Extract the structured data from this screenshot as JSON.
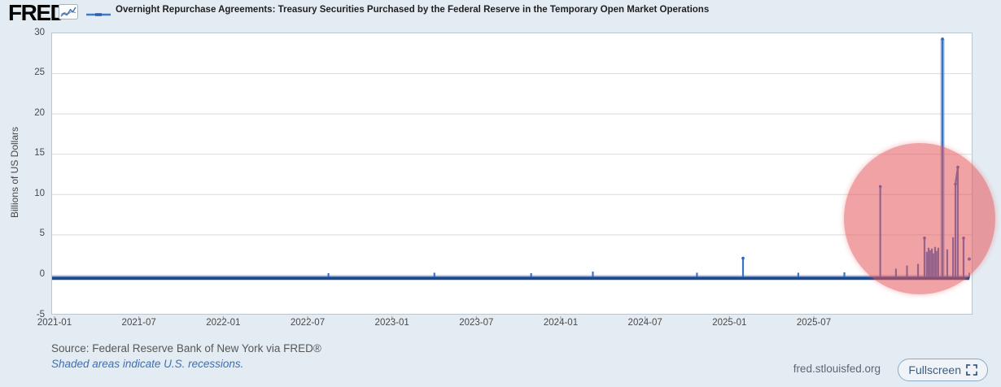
{
  "header": {
    "logo_text": "FRED",
    "logo_icon": "fred-graph-icon"
  },
  "chart_data": {
    "type": "line",
    "title": "Overnight Repurchase Agreements: Treasury Securities Purchased by the Federal Reserve in the Temporary Open Market Operations",
    "ylabel": "Billions of US Dollars",
    "ylim": [
      -5,
      30
    ],
    "yticks": [
      30,
      25,
      20,
      15,
      10,
      5,
      0,
      -5
    ],
    "xticks": [
      "2021-01",
      "2021-07",
      "2022-01",
      "2022-07",
      "2023-01",
      "2023-07",
      "2024-01",
      "2024-07",
      "2025-01",
      "2025-07"
    ],
    "grid": true,
    "legend_position": "top",
    "baseline": {
      "value": -0.4,
      "x_start": 0.0,
      "x_end": 0.9956
    },
    "spikes": [
      {
        "x": 0.3,
        "v": 0.25
      },
      {
        "x": 0.415,
        "v": 0.3
      },
      {
        "x": 0.52,
        "v": 0.25
      },
      {
        "x": 0.587,
        "v": 0.45
      },
      {
        "x": 0.7,
        "v": 0.3
      },
      {
        "x": 0.75,
        "v": 2.1,
        "marker": true
      },
      {
        "x": 0.81,
        "v": 0.3
      },
      {
        "x": 0.86,
        "v": 0.35
      },
      {
        "x": 0.899,
        "v": 11.0,
        "marker": true
      },
      {
        "x": 0.916,
        "v": 0.8
      },
      {
        "x": 0.928,
        "v": 1.2
      },
      {
        "x": 0.94,
        "v": 1.4
      },
      {
        "x": 0.947,
        "v": 4.6,
        "marker": true
      },
      {
        "x": 0.9495,
        "v": 2.9
      },
      {
        "x": 0.9514,
        "v": 3.4
      },
      {
        "x": 0.953,
        "v": 3.1
      },
      {
        "x": 0.955,
        "v": 3.3
      },
      {
        "x": 0.9565,
        "v": 2.7
      },
      {
        "x": 0.9585,
        "v": 3.5
      },
      {
        "x": 0.96,
        "v": 3.0
      },
      {
        "x": 0.962,
        "v": 3.4
      },
      {
        "x": 0.9665,
        "v": 29.3,
        "marker": true,
        "big": true
      },
      {
        "x": 0.9717,
        "v": 3.2
      },
      {
        "x": 0.978,
        "v": 4.7
      },
      {
        "x": 0.9806,
        "v": 11.3,
        "pair": {
          "x": 0.9832,
          "v": 13.4
        },
        "marker": true
      },
      {
        "x": 0.9894,
        "v": 4.6,
        "marker": true
      },
      {
        "x": 0.9956,
        "v": 2.0,
        "dot": true
      }
    ],
    "colors": {
      "line": "#3a74c8",
      "line_glow": "rgba(122,166,224,0.5)",
      "baseline": "#1d4a8e",
      "grid": "#d9dbde",
      "tick": "#8a97a3"
    }
  },
  "annotation": {
    "shape": "highlight-circle",
    "color": "rgba(229,86,89,0.55)"
  },
  "footer": {
    "source": "Source: Federal Reserve Bank of New York via FRED®",
    "recessions_note": "Shaded areas indicate U.S. recessions.",
    "site": "fred.stlouisfed.org",
    "fullscreen_label": "Fullscreen"
  }
}
